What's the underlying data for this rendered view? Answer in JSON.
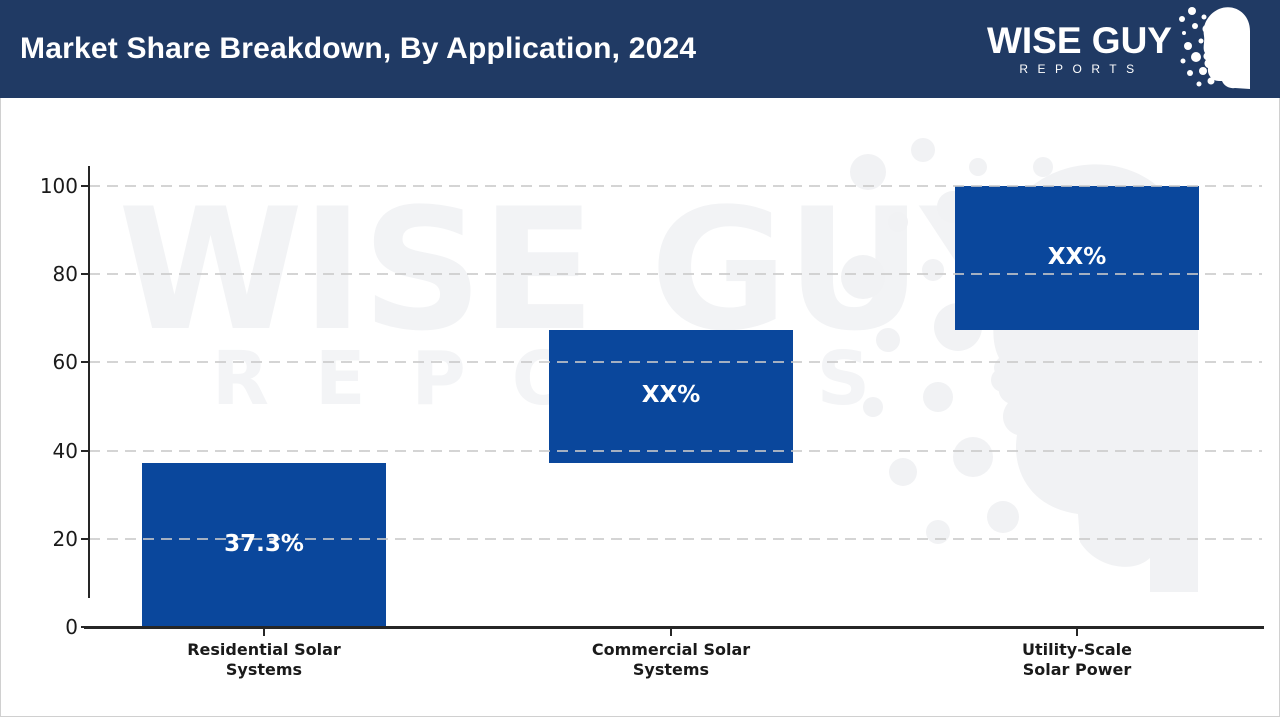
{
  "header": {
    "title": "Market Share Breakdown, By Application, 2024",
    "logo": {
      "name": "WISE GUY",
      "tagline": "REPORTS"
    }
  },
  "watermark": {
    "line1": "WISE GUY",
    "line2": "REPORTS"
  },
  "colors": {
    "header_bg": "#203a64",
    "bar": "#0a479c",
    "axis": "#262626",
    "gridline": "#d9d9d9",
    "tick_label": "#1a1a1a",
    "bar_label": "#ffffff",
    "watermark": "#f2f3f5",
    "page_bg": "#ffffff",
    "edge_line": "#d0d0d0"
  },
  "chart_data": {
    "type": "bar",
    "variant": "stacked-waterfall",
    "title": "Market Share Breakdown, By Application, 2024",
    "xlabel": "",
    "ylabel": "",
    "ylim": [
      0,
      100
    ],
    "yticks": [
      0,
      20,
      40,
      60,
      80,
      100
    ],
    "grid": "horizontal-dashed",
    "legend": "none",
    "categories": [
      "Residential Solar Systems",
      "Commercial Solar Systems",
      "Utility-Scale Solar Power"
    ],
    "bars": [
      {
        "category": "Residential Solar Systems",
        "category_lines": [
          "Residential Solar",
          "Systems"
        ],
        "start": 0,
        "end": 37.3,
        "label": "37.3%"
      },
      {
        "category": "Commercial Solar Systems",
        "category_lines": [
          "Commercial Solar",
          "Systems"
        ],
        "start": 37.3,
        "end": 67.3,
        "label": "XX%"
      },
      {
        "category": "Utility-Scale Solar Power",
        "category_lines": [
          "Utility-Scale",
          "Solar Power"
        ],
        "start": 67.3,
        "end": 100,
        "label": "XX%"
      }
    ]
  }
}
